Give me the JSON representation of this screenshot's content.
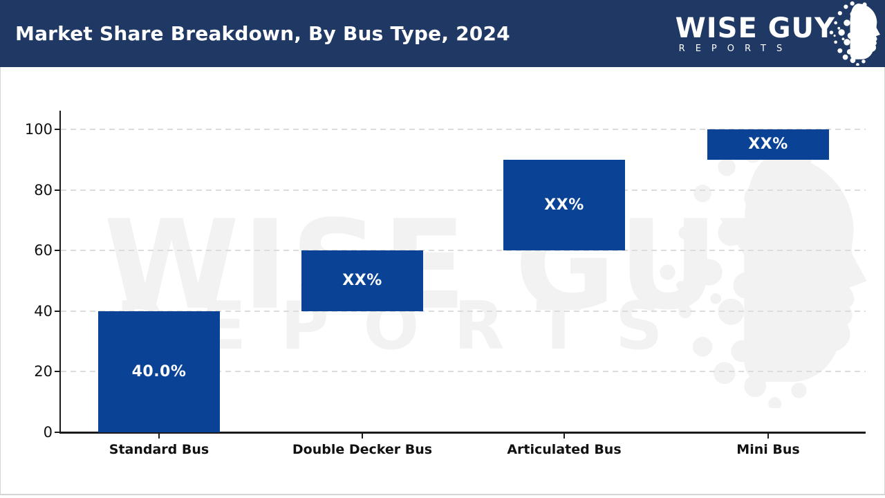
{
  "header": {
    "title": "Market Share Breakdown, By Bus Type, 2024",
    "logo": {
      "wordmark": "WISE GUY",
      "subtext": "REPORTS"
    }
  },
  "watermark": {
    "line1": "WISE GUY",
    "line2": "REPORTS"
  },
  "chart_data": {
    "type": "bar",
    "subtype": "waterfall",
    "title": "Market Share Breakdown, By Bus Type, 2024",
    "categories": [
      "Standard Bus",
      "Double Decker Bus",
      "Articulated Bus",
      "Mini Bus"
    ],
    "series": [
      {
        "name": "Market Share (%)",
        "segments": [
          {
            "category": "Standard Bus",
            "start": 0,
            "end": 40,
            "value": 40,
            "label": "40.0%"
          },
          {
            "category": "Double Decker Bus",
            "start": 40,
            "end": 60,
            "value": 20,
            "label": "XX%"
          },
          {
            "category": "Articulated Bus",
            "start": 60,
            "end": 90,
            "value": 30,
            "label": "XX%"
          },
          {
            "category": "Mini Bus",
            "start": 90,
            "end": 100,
            "value": 10,
            "label": "XX%"
          }
        ]
      }
    ],
    "xlabel": "",
    "ylabel": "",
    "ylim": [
      0,
      100
    ],
    "yticks": [
      0,
      20,
      40,
      60,
      80,
      100
    ],
    "grid": {
      "horizontal": true,
      "style": "dashed"
    },
    "legend": "none"
  },
  "colors": {
    "header_bg": "#1f3864",
    "header_text": "#ffffff",
    "bar": "#0a4296",
    "bar_label": "#ffffff",
    "grid": "#dcdcdc",
    "axis": "#1a1a1a",
    "tick_label": "#111111",
    "watermark": "#f2f2f2",
    "frame_border": "#d4d4d4",
    "background": "#ffffff"
  }
}
